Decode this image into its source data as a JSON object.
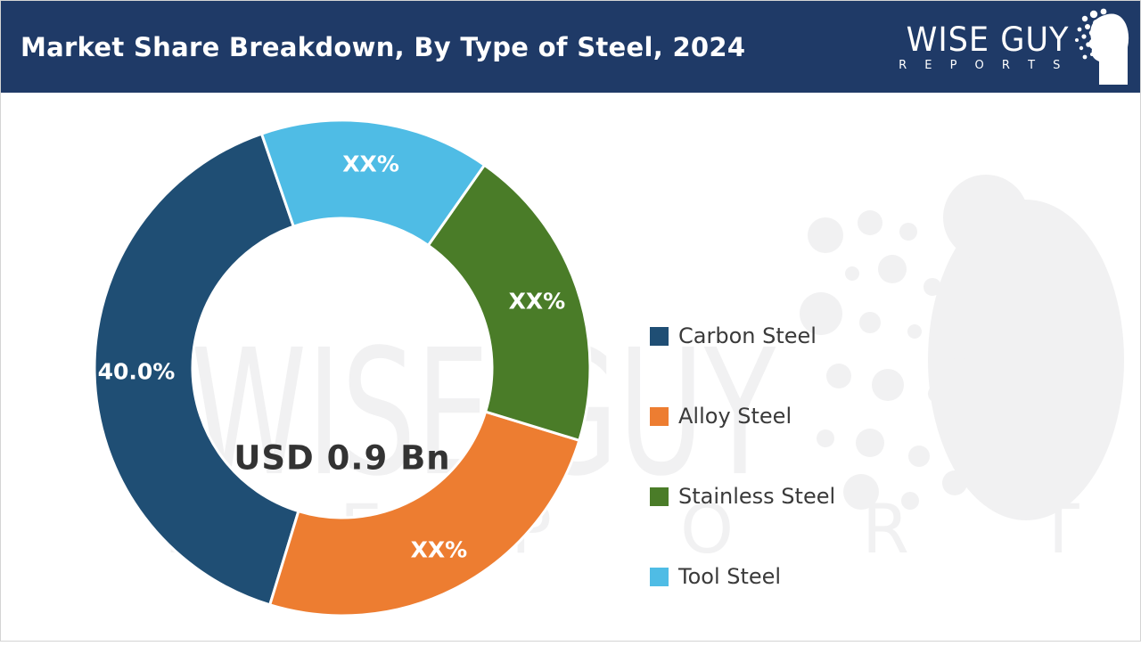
{
  "header": {
    "title": "Market Share Breakdown, By Type of Steel, 2024"
  },
  "logo": {
    "wordmark": "WISE GUY",
    "subtext": "R E P O R T S"
  },
  "watermark": {
    "line1": "WISE GUY",
    "line2": "R E P O R T S"
  },
  "chart_data": {
    "type": "donut",
    "title": "Market Share Breakdown, By Type of Steel, 2024",
    "center_label": "USD 0.9 Bn",
    "start_angle_deg": 109,
    "direction": "counterclockwise",
    "legend_position": "right",
    "segments": [
      {
        "name": "Carbon Steel",
        "label": "40.0%",
        "value_pct": 40,
        "color": "#1f4e74"
      },
      {
        "name": "Alloy Steel",
        "label": "XX%",
        "value_pct": 25,
        "color": "#ed7d31"
      },
      {
        "name": "Stainless Steel",
        "label": "XX%",
        "value_pct": 20,
        "color": "#4a7c28"
      },
      {
        "name": "Tool Steel",
        "label": "XX%",
        "value_pct": 15,
        "color": "#4fbce5"
      }
    ]
  },
  "colors": {
    "header_bg": "#1f3a67",
    "watermark": "#f1f1f2",
    "segment_label_text": "#ffffff",
    "center_text": "#333333",
    "legend_text": "#3a3a3a",
    "page_border": "#d4d4d4"
  }
}
